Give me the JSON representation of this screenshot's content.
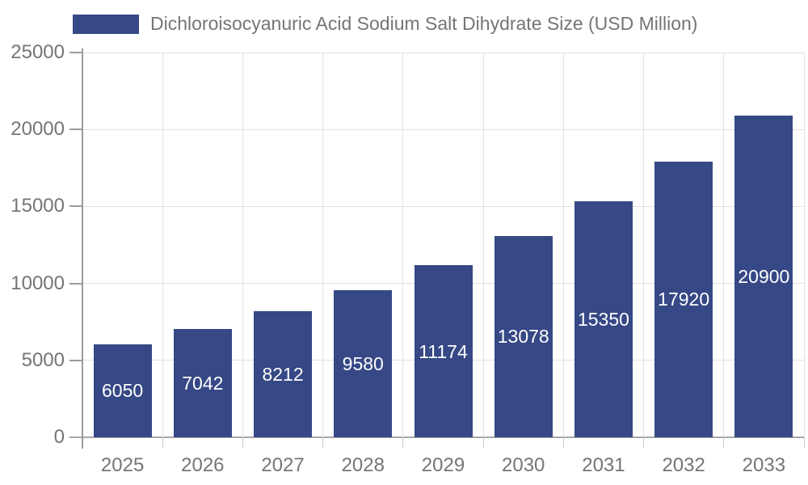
{
  "chart_data": {
    "type": "bar",
    "series_name": "Dichloroisocyanuric Acid Sodium Salt Dihydrate Size (USD Million)",
    "categories": [
      "2025",
      "2026",
      "2027",
      "2028",
      "2029",
      "2030",
      "2031",
      "2032",
      "2033"
    ],
    "values": [
      6050,
      7042,
      8212,
      9580,
      11174,
      13078,
      15350,
      17920,
      20900
    ],
    "ylim": [
      0,
      25000
    ],
    "yticks": [
      0,
      5000,
      10000,
      15000,
      20000,
      25000
    ],
    "legend_position": "top",
    "grid": true,
    "value_labels": "inside-center",
    "bar_color": "#364885",
    "value_label_color": "#ffffff",
    "axis_text_color": "#757575",
    "grid_color": "#e2e2e2",
    "axis_line_color": "#9b9b9b"
  }
}
